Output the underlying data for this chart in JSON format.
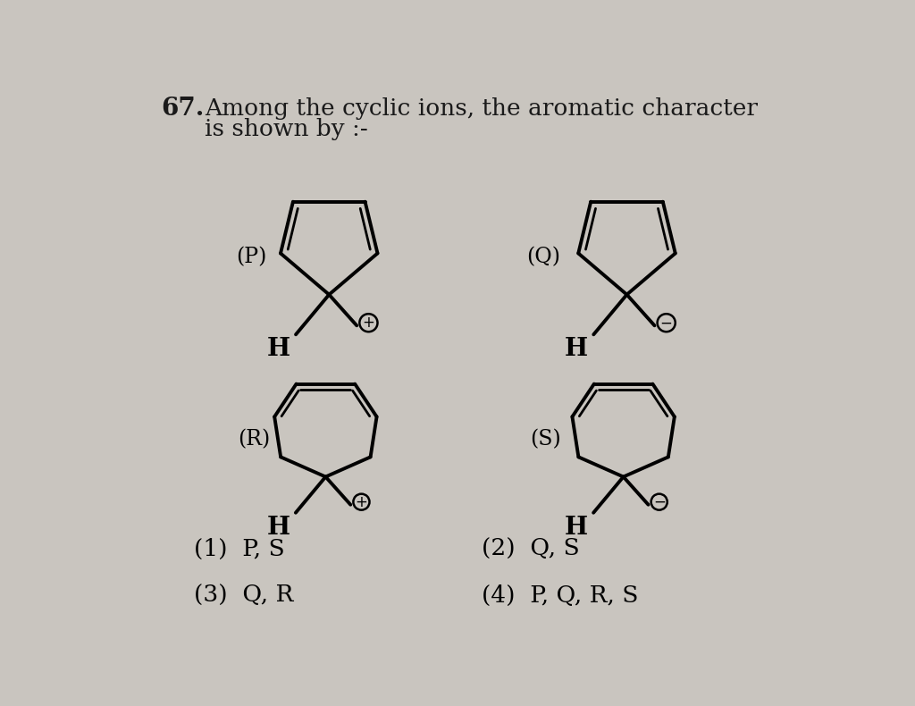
{
  "bg_color": "#c9c5bf",
  "text_color": "#1a1a1a",
  "q_number": "67.",
  "title_text": "Among the cyclic ions, the aromatic character",
  "title_text2": "is shown by :-",
  "label_P": "(P)",
  "label_Q": "(Q)",
  "label_R": "(R)",
  "label_S": "(S)",
  "option1": "(1)  P, S",
  "option2": "(2)  Q, S",
  "option3": "(3)  Q, R",
  "option4": "(4)  P, Q, R, S",
  "font_size_title": 19,
  "font_size_label": 17,
  "font_size_option": 19,
  "lw_main": 2.8,
  "lw_double": 2.0,
  "lw_charge": 1.8
}
